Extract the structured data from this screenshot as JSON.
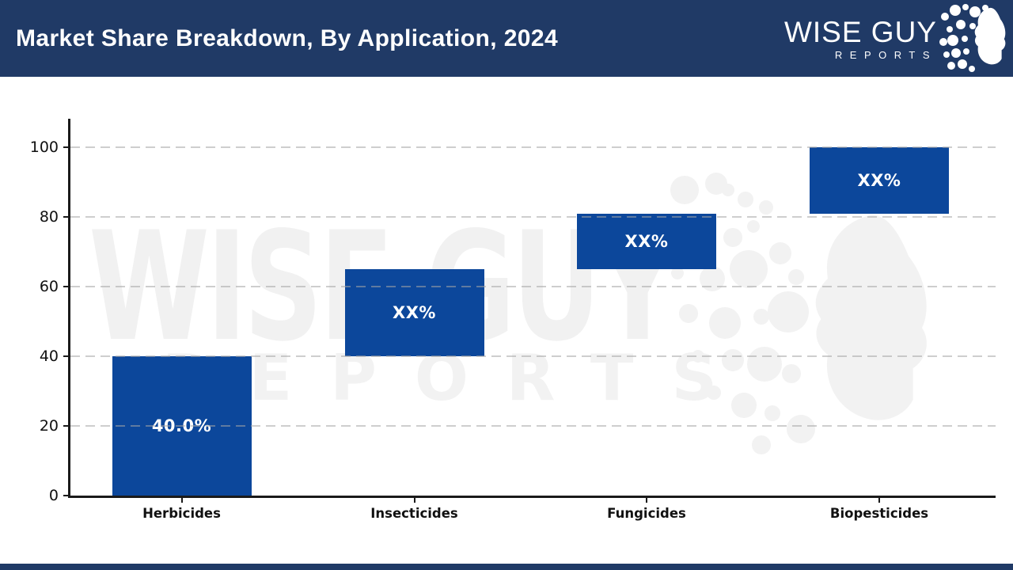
{
  "header": {
    "title": "Market Share Breakdown, By Application, 2024",
    "logo": {
      "line1": "WISE GUY",
      "line2": "REPORTS"
    }
  },
  "watermark": {
    "line1": "WISE GUY",
    "line2": "REPORTS"
  },
  "colors": {
    "header_bg": "#203A66",
    "footer_bg": "#203A66",
    "bar_blue": "#0C479B",
    "bar_label_text": "#FFFFFF",
    "axis": "#1A1A1A",
    "gridline": "#D9D9D9",
    "watermark_grey": "#F1F1F1"
  },
  "chart_data": {
    "type": "bar",
    "subtype": "waterfall",
    "title": "Market Share Breakdown, By Application, 2024",
    "categories": [
      "Herbicides",
      "Insecticides",
      "Fungicides",
      "Biopesticides"
    ],
    "segments": [
      {
        "category": "Herbicides",
        "start": 0,
        "end": 40,
        "label": "40.0%"
      },
      {
        "category": "Insecticides",
        "start": 40,
        "end": 65,
        "label": "XX%"
      },
      {
        "category": "Fungicides",
        "start": 65,
        "end": 81,
        "label": "XX%"
      },
      {
        "category": "Biopesticides",
        "start": 81,
        "end": 100,
        "label": "XX%"
      }
    ],
    "yticks": [
      0,
      20,
      40,
      60,
      80,
      100
    ],
    "ylim": [
      0,
      100
    ],
    "xlabel": "",
    "ylabel": "",
    "grid": "horizontal-dashed",
    "legend": "none"
  }
}
